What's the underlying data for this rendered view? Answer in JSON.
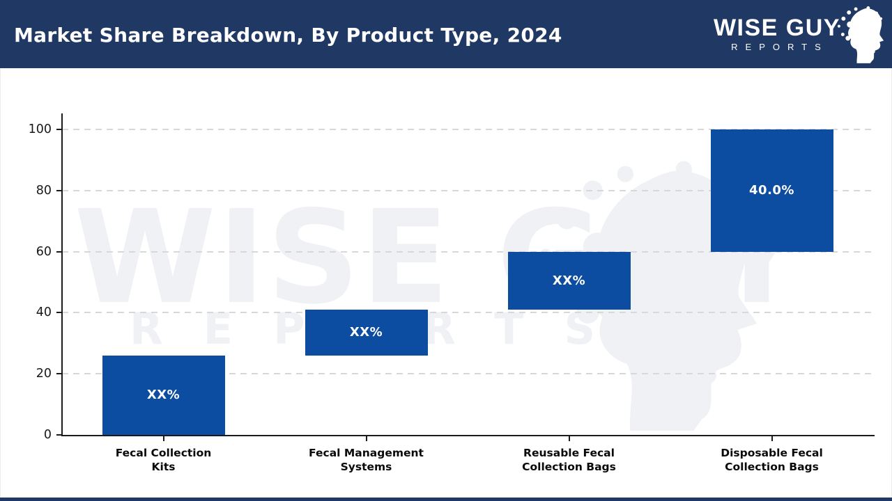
{
  "header": {
    "title": "Market Share Breakdown, By Product Type, 2024",
    "logo": {
      "brand": "WISE GUY",
      "sub": "REPORTS"
    }
  },
  "watermark": {
    "brand": "WISE GUY",
    "sub": "REPORTS"
  },
  "colors": {
    "header_bg": "#1f3864",
    "bar_blue": "#0d4da1",
    "grid_gray": "#d8d8d8",
    "watermark_gray": "#f0f1f4",
    "axis_black": "#1a1a1a"
  },
  "chart_data": {
    "type": "bar",
    "variant": "waterfall",
    "title": "Market Share Breakdown, By Product Type, 2024",
    "categories": [
      "Fecal Collection Kits",
      "Fecal Management Systems",
      "Reusable Fecal Collection Bags",
      "Disposable Fecal Collection Bags"
    ],
    "category_lines": [
      [
        "Fecal Collection",
        "Kits"
      ],
      [
        "Fecal Management",
        "Systems"
      ],
      [
        "Reusable Fecal",
        "Collection Bags"
      ],
      [
        "Disposable Fecal",
        "Collection Bags"
      ]
    ],
    "bars": [
      {
        "start": 0,
        "end": 26,
        "value": 26,
        "label": "XX%"
      },
      {
        "start": 26,
        "end": 41,
        "value": 15,
        "label": "XX%"
      },
      {
        "start": 41,
        "end": 60,
        "value": 19,
        "label": "XX%"
      },
      {
        "start": 60,
        "end": 100,
        "value": 40,
        "label": "40.0%"
      }
    ],
    "y_ticks": [
      0,
      20,
      40,
      60,
      80,
      100
    ],
    "ylim": [
      0,
      105
    ],
    "xlabel": "",
    "ylabel": "",
    "grid": true,
    "legend": null,
    "bar_color": "#0d4da1"
  }
}
